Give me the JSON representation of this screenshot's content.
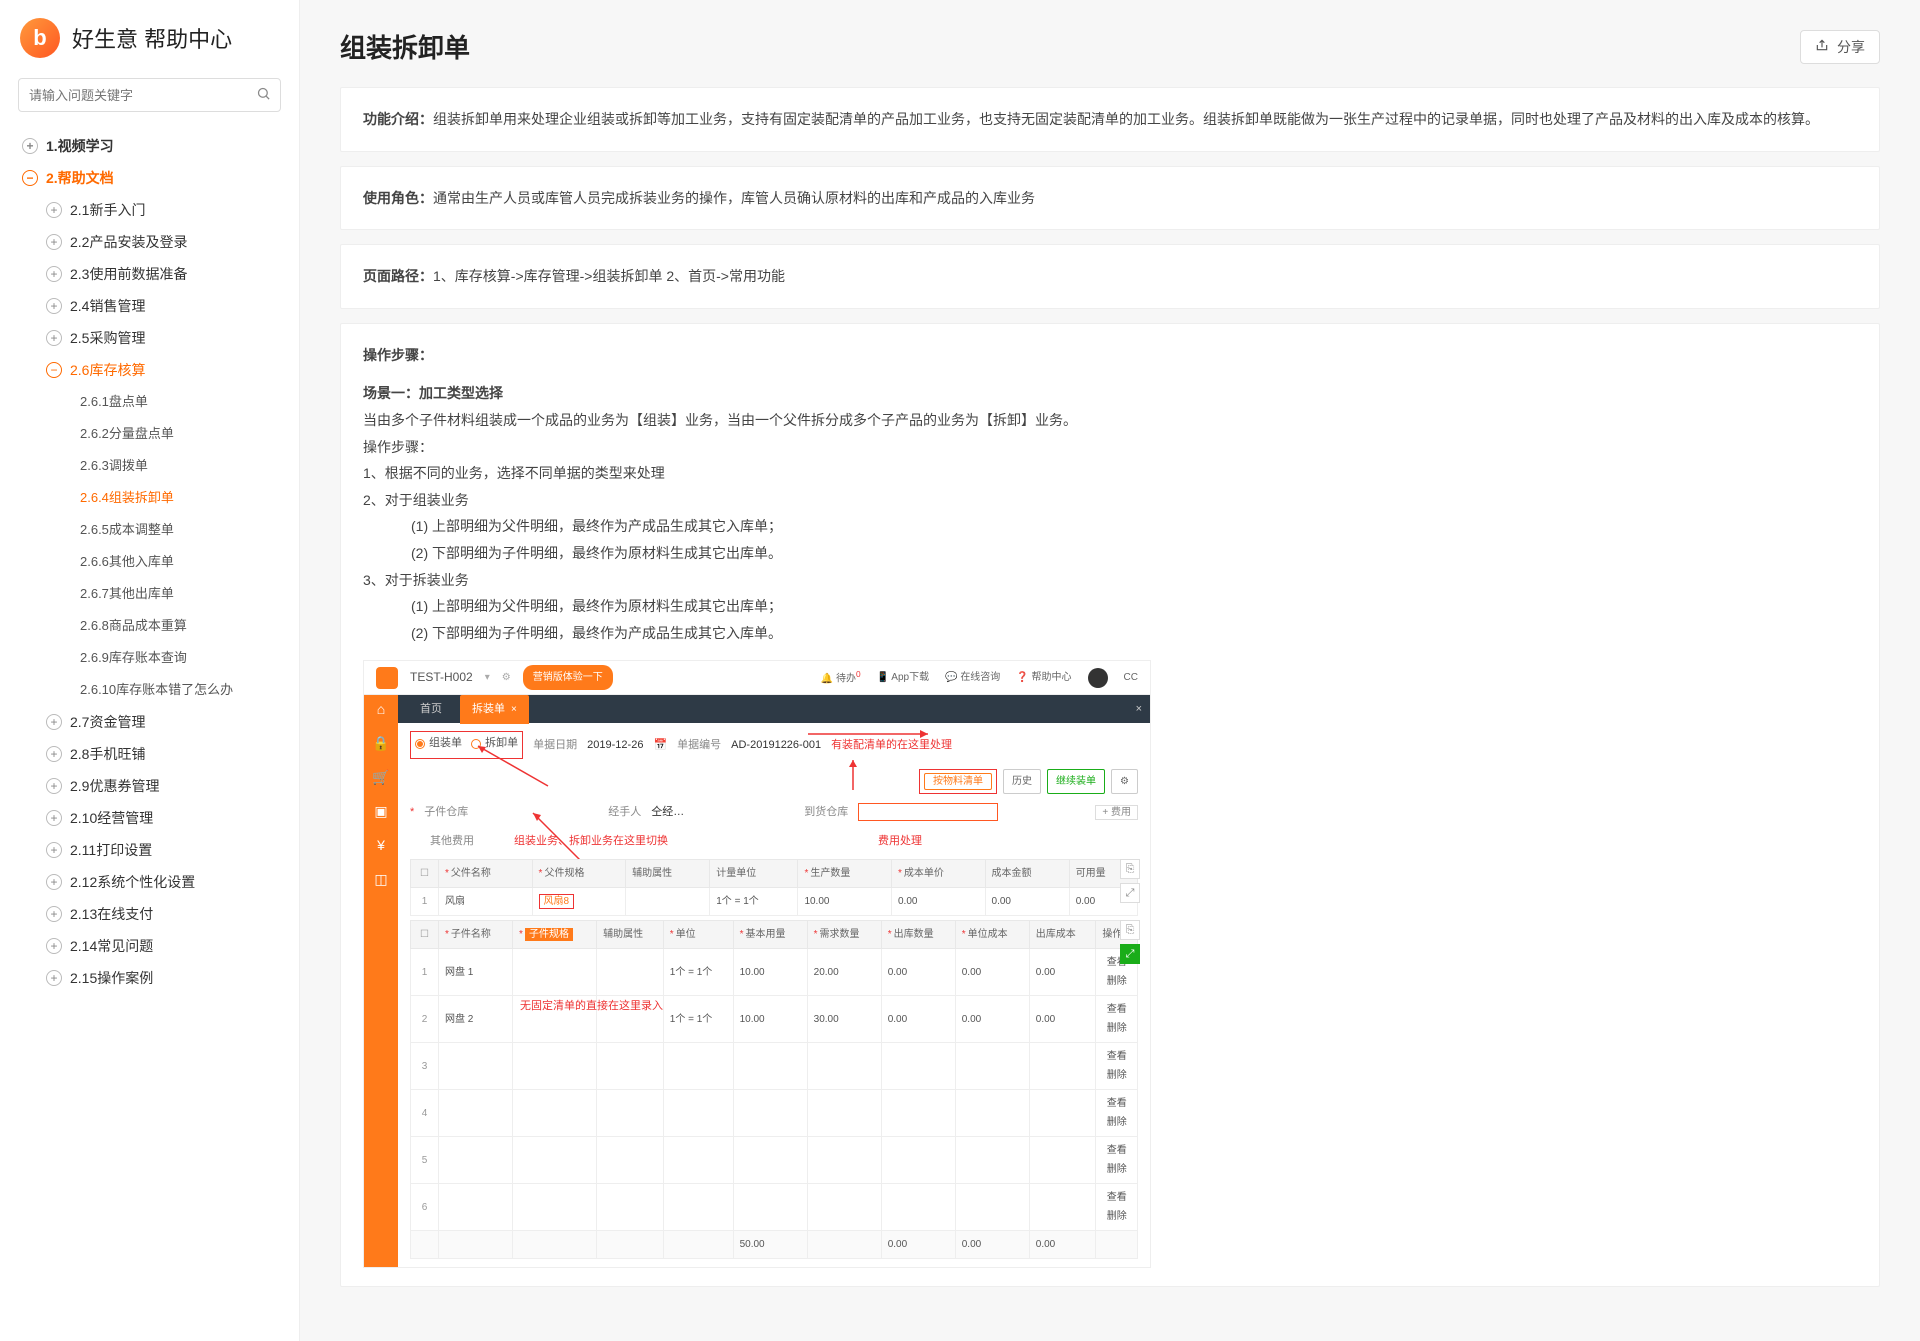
{
  "brand": "好生意 帮助中心",
  "search": {
    "placeholder": "请输入问题关键字"
  },
  "share_label": "分享",
  "nav": {
    "n1": "1.视频学习",
    "n2": "2.帮助文档",
    "n21": "2.1新手入门",
    "n22": "2.2产品安装及登录",
    "n23": "2.3使用前数据准备",
    "n24": "2.4销售管理",
    "n25": "2.5采购管理",
    "n26": "2.6库存核算",
    "n261": "2.6.1盘点单",
    "n262": "2.6.2分量盘点单",
    "n263": "2.6.3调拨单",
    "n264": "2.6.4组装拆卸单",
    "n265": "2.6.5成本调整单",
    "n266": "2.6.6其他入库单",
    "n267": "2.6.7其他出库单",
    "n268": "2.6.8商品成本重算",
    "n269": "2.6.9库存账本查询",
    "n2610": "2.6.10库存账本错了怎么办",
    "n27": "2.7资金管理",
    "n28": "2.8手机旺铺",
    "n29": "2.9优惠券管理",
    "n210": "2.10经营管理",
    "n211": "2.11打印设置",
    "n212": "2.12系统个性化设置",
    "n213": "2.13在线支付",
    "n214": "2.14常见问题",
    "n215": "2.15操作案例"
  },
  "page": {
    "title": "组装拆卸单",
    "intro_label": "功能介绍：",
    "intro_text": "组装拆卸单用来处理企业组装或拆卸等加工业务，支持有固定装配清单的产品加工业务，也支持无固定装配清单的加工业务。组装拆卸单既能做为一张生产过程中的记录单据，同时也处理了产品及材料的出入库及成本的核算。",
    "role_label": "使用角色：",
    "role_text": "通常由生产人员或库管人员完成拆装业务的操作，库管人员确认原材料的出库和产成品的入库业务",
    "path_label": "页面路径：",
    "path_text": "1、库存核算->库存管理->组装拆卸单 2、首页->常用功能",
    "steps_title": "操作步骤：",
    "scene1_title": "场景一：加工类型选择",
    "scene1_desc": "当由多个子件材料组装成一个成品的业务为【组装】业务，当由一个父件拆分成多个子产品的业务为【拆卸】业务。",
    "steps_sub": "操作步骤：",
    "s1": "1、根据不同的业务，选择不同单据的类型来处理",
    "s2": "2、对于组装业务",
    "s2a": "(1)  上部明细为父件明细，最终作为产成品生成其它入库单；",
    "s2b": "(2)  下部明细为子件明细，最终作为原材料生成其它出库单。",
    "s3": "3、对于拆装业务",
    "s3a": "(1)  上部明细为父件明细，最终作为原材料生成其它出库单；",
    "s3b": "(2)  下部明细为子件明细，最终作为产成品生成其它入库单。"
  },
  "ss": {
    "tenant": "TEST-H002",
    "pill": "营销版体验一下",
    "top_pending": "待办",
    "top_app": "App下载",
    "top_online": "在线咨询",
    "top_help": "帮助中心",
    "top_user": "CC",
    "tab_home": "首页",
    "tab_current": "拆装单",
    "radio_assemble": "组装单",
    "radio_disassemble": "拆卸单",
    "date_label": "单据日期",
    "date_value": "2019-12-26",
    "code_label": "单据编号",
    "code_value": "AD-20191226-001",
    "annot_top": "有装配清单的在这里处理",
    "btn_by_bom": "按物料清单",
    "btn_history": "历史",
    "btn_continue": "继续装单",
    "warehouse_label": "子件仓库",
    "handler_label": "经手人",
    "handler_value": "仝经…",
    "arrival_label": "到货仓库",
    "fee_btn": "费用",
    "annot_switch": "组装业务、拆卸业务在这里切换",
    "annot_fee": "费用处理",
    "other_fee": "其他费用",
    "annot_bottom": "无固定清单的直接在这里录入",
    "parent_cols": {
      "name": "父件名称",
      "spec": "父件规格",
      "assist": "辅助属性",
      "unit": "计量单位",
      "qty": "生产数量",
      "cost_unit": "成本单价",
      "cost_amt": "成本金额",
      "stock": "可用量"
    },
    "parent_row": {
      "idx": "1",
      "name": "风扇",
      "spec": "风扇8",
      "unit": "1个 = 1个",
      "qty": "10.00",
      "cost_unit": "0.00",
      "cost_amt": "0.00",
      "stock": "0.00"
    },
    "child_cols": {
      "name": "子件名称",
      "spec": "子件规格",
      "assist": "辅助属性",
      "unit": "单位",
      "qty": "基本用量",
      "need": "需求数量",
      "out": "出库数量",
      "cost_unit": "单位成本",
      "cost_amt": "出库成本",
      "action": "操作"
    },
    "child_rows": [
      {
        "idx": "1",
        "name": "网盘 1",
        "unit": "1个 = 1个",
        "qty": "10.00",
        "need": "20.00",
        "out": "0.00",
        "cost_unit": "0.00",
        "cost_amt": "0.00"
      },
      {
        "idx": "2",
        "name": "网盘 2",
        "unit": "1个 = 1个",
        "qty": "10.00",
        "need": "30.00",
        "out": "0.00",
        "cost_unit": "0.00",
        "cost_amt": "0.00"
      }
    ],
    "empty_rows": [
      "3",
      "4",
      "5",
      "6"
    ],
    "totals": {
      "qty": "50.00",
      "out": "0.00",
      "cost_unit": "0.00",
      "cost_amt": "0.00"
    },
    "act_check": "查看",
    "act_del": "删除"
  }
}
